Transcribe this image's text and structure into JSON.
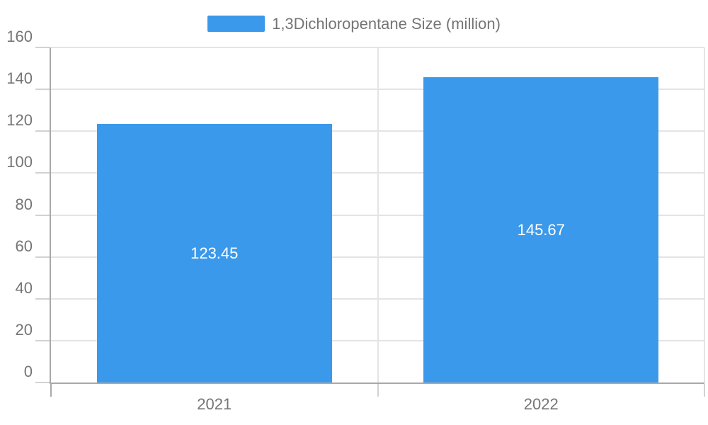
{
  "legend": {
    "label": "1,3Dichloropentane Size (million)"
  },
  "chart_data": {
    "type": "bar",
    "title": "",
    "xlabel": "",
    "ylabel": "",
    "categories": [
      "2021",
      "2022"
    ],
    "series": [
      {
        "name": "1,3Dichloropentane Size (million)",
        "values": [
          123.45,
          145.67
        ],
        "data_labels": [
          "123.45",
          "145.67"
        ]
      }
    ],
    "ylim": [
      0,
      160
    ],
    "yticks": [
      0,
      20,
      40,
      60,
      80,
      100,
      120,
      140,
      160
    ],
    "grid": true,
    "legend_position": "top-center",
    "bar_width_fraction": 0.72,
    "colors": {
      "bar": "#3b99eb",
      "axis_line": "#a8a8a8",
      "tick": "#d2d2d2",
      "grid": "#e4e4e4",
      "axis_label": "#757575",
      "legend_label": "#757575",
      "data_label": "#ffffff"
    }
  }
}
